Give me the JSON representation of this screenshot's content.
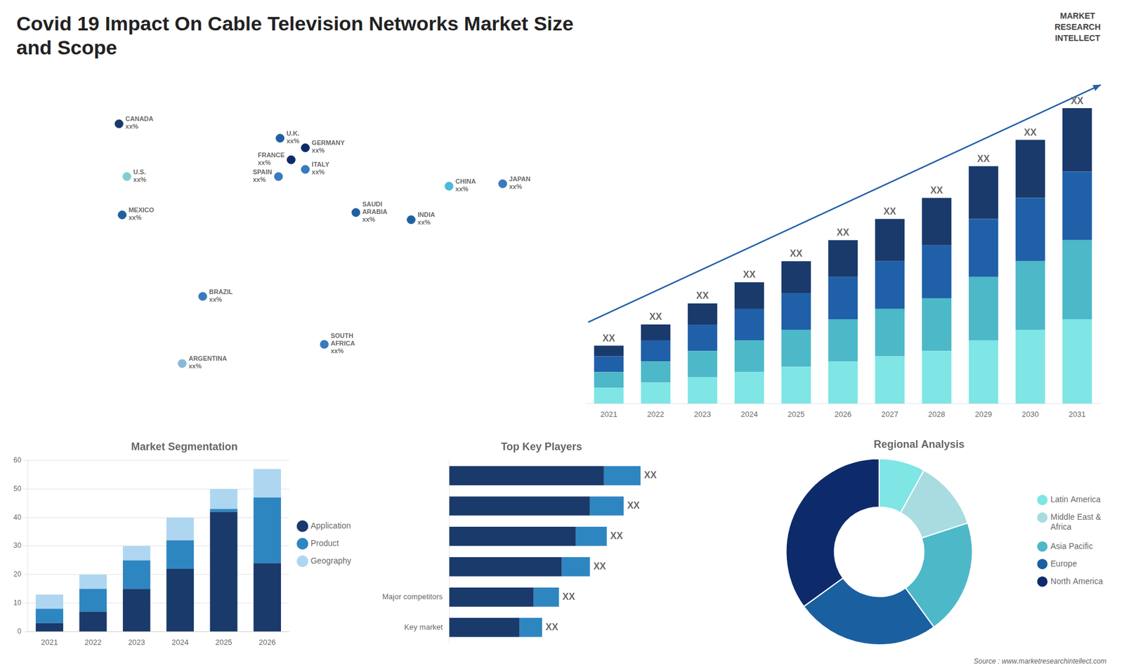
{
  "title": [
    "Covid 19 Impact On Cable Television Networks Market Size",
    "and Scope"
  ],
  "annotations": [
    "MARKET\nRESEARCH\nINTELLECT",
    "Source : www.marketresearchintellect.com"
  ],
  "chart_data": [
    {
      "type": "scatter",
      "xlim": [
        -170,
        180
      ],
      "ylim": [
        -60,
        80
      ],
      "tick_labels": false,
      "grid": false,
      "annotations": [
        {
          "text": "CANADA\nxx%",
          "x": -105,
          "y": 62,
          "color": "#1a3a6b"
        },
        {
          "text": "U.S.\nxx%",
          "x": -100,
          "y": 40,
          "color": "#7fcfcf"
        },
        {
          "text": "MEXICO\nxx%",
          "x": -103,
          "y": 24,
          "color": "#2060a0"
        },
        {
          "text": "BRAZIL\nxx%",
          "x": -52,
          "y": -10,
          "color": "#3a7abf"
        },
        {
          "text": "ARGENTINA\nxx%",
          "x": -65,
          "y": -38,
          "color": "#8ab8d8"
        },
        {
          "text": "U.K.\nxx%",
          "x": -3,
          "y": 56,
          "color": "#2060a0"
        },
        {
          "text": "FRANCE\nxx%",
          "x": 4,
          "y": 47,
          "color": "#0d2b6b"
        },
        {
          "text": "SPAIN\nxx%",
          "x": -4,
          "y": 40,
          "color": "#3a7abf"
        },
        {
          "text": "GERMANY\nxx%",
          "x": 13,
          "y": 52,
          "color": "#0d2b6b"
        },
        {
          "text": "ITALY\nxx%",
          "x": 13,
          "y": 43,
          "color": "#3a7abf"
        },
        {
          "text": "SAUDI\nARABIA\nxx%",
          "x": 45,
          "y": 25,
          "color": "#2060a0"
        },
        {
          "text": "SOUTH\nAFRICA\nxx%",
          "x": 25,
          "y": -30,
          "color": "#3a7abf"
        },
        {
          "text": "CHINA\nxx%",
          "x": 104,
          "y": 36,
          "color": "#4db8d8"
        },
        {
          "text": "INDIA\nxx%",
          "x": 80,
          "y": 22,
          "color": "#2060a0"
        },
        {
          "text": "JAPAN\nxx%",
          "x": 138,
          "y": 37,
          "color": "#3a7abf"
        }
      ]
    },
    {
      "type": "bar",
      "stacked": true,
      "categories": [
        "2021",
        "2022",
        "2023",
        "2024",
        "2025",
        "2026",
        "2027",
        "2028",
        "2029",
        "2030",
        "2031"
      ],
      "series": [
        {
          "color": "#7fe5e5",
          "values": [
            3,
            4,
            5,
            6,
            7,
            8,
            9,
            10,
            12,
            14,
            16
          ]
        },
        {
          "color": "#4db8c8",
          "values": [
            3,
            4,
            5,
            6,
            7,
            8,
            9,
            10,
            12,
            13,
            15
          ]
        },
        {
          "color": "#2060a8",
          "values": [
            3,
            4,
            5,
            6,
            7,
            8,
            9,
            10,
            11,
            12,
            13
          ]
        },
        {
          "color": "#1a3a6b",
          "values": [
            2,
            3,
            4,
            5,
            6,
            7,
            8,
            9,
            10,
            11,
            12
          ]
        }
      ],
      "ylim": [
        0,
        61
      ],
      "tick_labels": "x",
      "grid": false,
      "annotations": [
        "XX",
        "XX",
        "XX",
        "XX",
        "XX",
        "XX",
        "XX",
        "XX",
        "XX",
        "XX",
        "XX"
      ]
    },
    {
      "type": "bar",
      "title": "Market Segmentation",
      "stacked": true,
      "categories": [
        "2021",
        "2022",
        "2023",
        "2024",
        "2025",
        "2026"
      ],
      "series": [
        {
          "name": "Application",
          "color": "#1a3a6b",
          "values": [
            3,
            7,
            15,
            22,
            42,
            24
          ]
        },
        {
          "name": "Product",
          "color": "#2e86c1",
          "values": [
            5,
            8,
            10,
            10,
            1,
            23
          ]
        },
        {
          "name": "Geography",
          "color": "#aed6f1",
          "values": [
            5,
            5,
            5,
            8,
            7,
            10
          ]
        }
      ],
      "ylim": [
        0,
        60
      ],
      "yticks": [
        0,
        10,
        20,
        30,
        40,
        50,
        60
      ],
      "grid": true,
      "legend": "right"
    },
    {
      "type": "bar",
      "orientation": "horizontal",
      "title": "Top Key Players",
      "stacked": true,
      "categories": [
        null,
        null,
        null,
        null,
        "Major competitors",
        "Key market"
      ],
      "series": [
        {
          "color": "#1a3a6b",
          "values": [
            55,
            50,
            45,
            40,
            30,
            25
          ]
        },
        {
          "color": "#2e86c1",
          "values": [
            13,
            12,
            11,
            10,
            9,
            8
          ]
        }
      ],
      "xlim": [
        0,
        90
      ],
      "tick_labels": "y",
      "grid": false,
      "annotations": [
        "XX",
        "XX",
        "XX",
        "XX",
        "XX",
        "XX"
      ]
    },
    {
      "type": "doughnut",
      "title": "Regional Analysis",
      "categories": [
        "Latin America",
        "Middle East &\nAfrica",
        "Asia Pacific",
        "Europe",
        "North America"
      ],
      "values": [
        8,
        12,
        20,
        25,
        35
      ],
      "colors": [
        "#7fe5e5",
        "#a8dce0",
        "#4db8c8",
        "#1a5fa0",
        "#0d2b6b"
      ],
      "legend": "right"
    }
  ]
}
